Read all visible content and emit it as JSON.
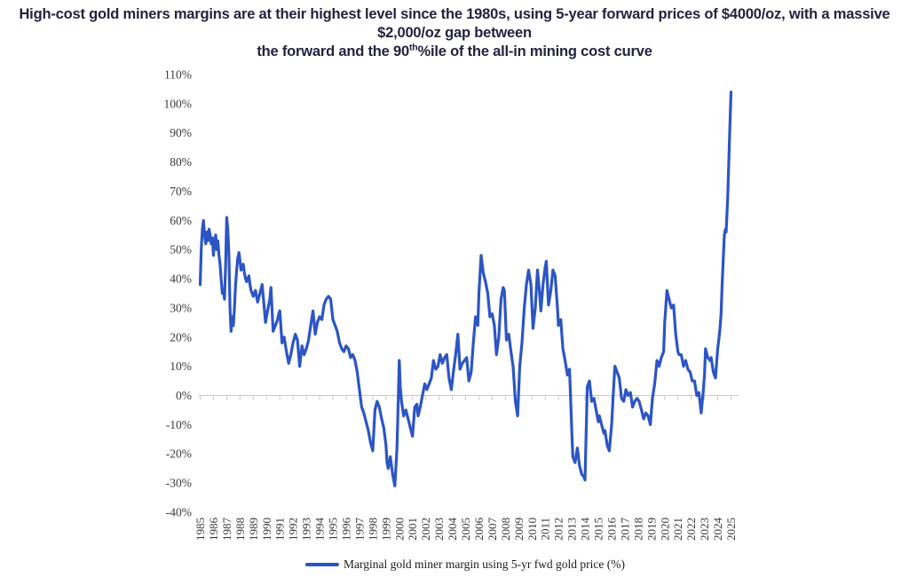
{
  "title": {
    "line1": "High-cost gold miners margins are at their highest level since the 1980s, using 5-year forward prices of $4000/oz, with a massive $2,000/oz gap between",
    "line2_pre": "the forward and the 90",
    "line2_sup": "th",
    "line2_post": "%ile of the all-in mining cost curve"
  },
  "legend": {
    "label": "Marginal gold miner margin using 5-yr fwd gold price (%)"
  },
  "colors": {
    "line": "#2C55C5",
    "axis": "#c9c9c9",
    "tick_text": "#3a3a3a",
    "title_text": "#23233F",
    "background": "#ffffff"
  },
  "chart_data": {
    "type": "line",
    "title": "High-cost gold miners margins are at their highest level since the 1980s, using 5-year forward prices of $4000/oz, with a massive $2,000/oz gap between the forward and the 90th%ile of the all-in mining cost curve",
    "xlabel": "",
    "ylabel": "",
    "grid": false,
    "legend_position": "bottom",
    "xlim": [
      1985,
      2025.5
    ],
    "ylim": [
      -40,
      110
    ],
    "y_ticks": [
      "110%",
      "100%",
      "90%",
      "80%",
      "70%",
      "60%",
      "50%",
      "40%",
      "30%",
      "20%",
      "10%",
      "0%",
      "-10%",
      "-20%",
      "-30%",
      "-40%"
    ],
    "x_ticks": [
      "1985",
      "1986",
      "1987",
      "1988",
      "1989",
      "1990",
      "1991",
      "1992",
      "1993",
      "1994",
      "1995",
      "1996",
      "1997",
      "1998",
      "1999",
      "2000",
      "2001",
      "2002",
      "2003",
      "2004",
      "2005",
      "2006",
      "2007",
      "2008",
      "2009",
      "2010",
      "2011",
      "2012",
      "2013",
      "2014",
      "2015",
      "2016",
      "2017",
      "2018",
      "2019",
      "2020",
      "2021",
      "2022",
      "2023",
      "2024",
      "2025"
    ],
    "series": [
      {
        "name": "Marginal gold miner margin using 5-yr fwd gold price (%)",
        "color": "#2C55C5",
        "points": [
          [
            1985.0,
            38
          ],
          [
            1985.08,
            50
          ],
          [
            1985.17,
            57
          ],
          [
            1985.25,
            60
          ],
          [
            1985.33,
            55
          ],
          [
            1985.42,
            52
          ],
          [
            1985.5,
            56
          ],
          [
            1985.58,
            53
          ],
          [
            1985.67,
            57
          ],
          [
            1985.75,
            55
          ],
          [
            1985.83,
            52
          ],
          [
            1985.92,
            54
          ],
          [
            1986.0,
            48
          ],
          [
            1986.08,
            52
          ],
          [
            1986.17,
            55
          ],
          [
            1986.25,
            50
          ],
          [
            1986.33,
            53
          ],
          [
            1986.42,
            48
          ],
          [
            1986.5,
            45
          ],
          [
            1986.58,
            40
          ],
          [
            1986.67,
            35
          ],
          [
            1986.75,
            36
          ],
          [
            1986.83,
            33
          ],
          [
            1986.92,
            45
          ],
          [
            1987.0,
            61
          ],
          [
            1987.08,
            57
          ],
          [
            1987.17,
            48
          ],
          [
            1987.25,
            30
          ],
          [
            1987.33,
            22
          ],
          [
            1987.42,
            27
          ],
          [
            1987.5,
            24
          ],
          [
            1987.58,
            30
          ],
          [
            1987.67,
            38
          ],
          [
            1987.75,
            43
          ],
          [
            1987.83,
            47
          ],
          [
            1987.92,
            49
          ],
          [
            1988.0,
            46
          ],
          [
            1988.08,
            43
          ],
          [
            1988.17,
            44
          ],
          [
            1988.25,
            45
          ],
          [
            1988.33,
            42
          ],
          [
            1988.42,
            40
          ],
          [
            1988.5,
            39
          ],
          [
            1988.58,
            40
          ],
          [
            1988.67,
            41
          ],
          [
            1988.75,
            38
          ],
          [
            1988.83,
            36
          ],
          [
            1988.92,
            35
          ],
          [
            1989.0,
            34
          ],
          [
            1989.17,
            36
          ],
          [
            1989.33,
            32
          ],
          [
            1989.5,
            35
          ],
          [
            1989.67,
            38
          ],
          [
            1989.83,
            30
          ],
          [
            1989.92,
            25
          ],
          [
            1990.08,
            29
          ],
          [
            1990.25,
            33
          ],
          [
            1990.33,
            37
          ],
          [
            1990.5,
            22
          ],
          [
            1990.67,
            24
          ],
          [
            1990.83,
            26
          ],
          [
            1990.92,
            28
          ],
          [
            1991.0,
            29
          ],
          [
            1991.17,
            18
          ],
          [
            1991.33,
            20
          ],
          [
            1991.5,
            15
          ],
          [
            1991.67,
            11
          ],
          [
            1991.83,
            14
          ],
          [
            1992.0,
            18
          ],
          [
            1992.17,
            21
          ],
          [
            1992.33,
            19
          ],
          [
            1992.5,
            10
          ],
          [
            1992.67,
            17
          ],
          [
            1992.83,
            14
          ],
          [
            1993.0,
            16
          ],
          [
            1993.17,
            19
          ],
          [
            1993.33,
            24
          ],
          [
            1993.5,
            29
          ],
          [
            1993.67,
            21
          ],
          [
            1993.83,
            25
          ],
          [
            1994.0,
            27
          ],
          [
            1994.17,
            26
          ],
          [
            1994.33,
            31
          ],
          [
            1994.5,
            33
          ],
          [
            1994.67,
            34
          ],
          [
            1994.83,
            33
          ],
          [
            1995.0,
            26
          ],
          [
            1995.17,
            24
          ],
          [
            1995.33,
            22
          ],
          [
            1995.5,
            18
          ],
          [
            1995.67,
            16
          ],
          [
            1995.83,
            15
          ],
          [
            1996.0,
            17
          ],
          [
            1996.17,
            16
          ],
          [
            1996.33,
            13
          ],
          [
            1996.5,
            14
          ],
          [
            1996.67,
            12
          ],
          [
            1996.83,
            8
          ],
          [
            1997.0,
            2
          ],
          [
            1997.17,
            -4
          ],
          [
            1997.33,
            -6
          ],
          [
            1997.5,
            -9
          ],
          [
            1997.67,
            -12
          ],
          [
            1997.83,
            -16
          ],
          [
            1998.0,
            -19
          ],
          [
            1998.17,
            -5
          ],
          [
            1998.33,
            -2
          ],
          [
            1998.5,
            -4
          ],
          [
            1998.67,
            -8
          ],
          [
            1998.83,
            -11
          ],
          [
            1999.0,
            -17
          ],
          [
            1999.08,
            -23
          ],
          [
            1999.17,
            -25
          ],
          [
            1999.33,
            -21
          ],
          [
            1999.5,
            -27
          ],
          [
            1999.67,
            -31
          ],
          [
            1999.83,
            -18
          ],
          [
            1999.92,
            -2
          ],
          [
            2000.0,
            12
          ],
          [
            2000.08,
            3
          ],
          [
            2000.17,
            -2
          ],
          [
            2000.33,
            -7
          ],
          [
            2000.5,
            -5
          ],
          [
            2000.67,
            -8
          ],
          [
            2000.83,
            -11
          ],
          [
            2001.0,
            -14
          ],
          [
            2001.17,
            -4
          ],
          [
            2001.33,
            -3
          ],
          [
            2001.42,
            -7
          ],
          [
            2001.58,
            -4
          ],
          [
            2001.75,
            0
          ],
          [
            2001.92,
            4
          ],
          [
            2002.08,
            2
          ],
          [
            2002.25,
            4
          ],
          [
            2002.42,
            6
          ],
          [
            2002.58,
            12
          ],
          [
            2002.75,
            9
          ],
          [
            2002.92,
            10
          ],
          [
            2003.08,
            14
          ],
          [
            2003.25,
            11
          ],
          [
            2003.42,
            13
          ],
          [
            2003.58,
            14
          ],
          [
            2003.75,
            6
          ],
          [
            2003.92,
            2
          ],
          [
            2004.08,
            8
          ],
          [
            2004.25,
            14
          ],
          [
            2004.42,
            21
          ],
          [
            2004.58,
            9
          ],
          [
            2004.75,
            11
          ],
          [
            2004.92,
            12
          ],
          [
            2005.08,
            13
          ],
          [
            2005.25,
            5
          ],
          [
            2005.42,
            8
          ],
          [
            2005.58,
            18
          ],
          [
            2005.75,
            27
          ],
          [
            2005.92,
            24
          ],
          [
            2006.0,
            35
          ],
          [
            2006.17,
            48
          ],
          [
            2006.33,
            42
          ],
          [
            2006.5,
            39
          ],
          [
            2006.67,
            35
          ],
          [
            2006.83,
            27
          ],
          [
            2007.0,
            28
          ],
          [
            2007.17,
            24
          ],
          [
            2007.33,
            14
          ],
          [
            2007.5,
            20
          ],
          [
            2007.67,
            33
          ],
          [
            2007.83,
            37
          ],
          [
            2007.92,
            36
          ],
          [
            2008.08,
            19
          ],
          [
            2008.25,
            21
          ],
          [
            2008.42,
            15
          ],
          [
            2008.58,
            10
          ],
          [
            2008.75,
            -2
          ],
          [
            2008.92,
            -7
          ],
          [
            2009.08,
            10
          ],
          [
            2009.25,
            18
          ],
          [
            2009.42,
            30
          ],
          [
            2009.58,
            38
          ],
          [
            2009.75,
            43
          ],
          [
            2009.92,
            38
          ],
          [
            2010.08,
            23
          ],
          [
            2010.25,
            30
          ],
          [
            2010.42,
            43
          ],
          [
            2010.58,
            35
          ],
          [
            2010.67,
            29
          ],
          [
            2010.83,
            38
          ],
          [
            2011.0,
            44
          ],
          [
            2011.08,
            46
          ],
          [
            2011.25,
            31
          ],
          [
            2011.42,
            36
          ],
          [
            2011.58,
            43
          ],
          [
            2011.75,
            41
          ],
          [
            2011.92,
            30
          ],
          [
            2012.0,
            24
          ],
          [
            2012.17,
            26
          ],
          [
            2012.33,
            16
          ],
          [
            2012.5,
            12
          ],
          [
            2012.67,
            7
          ],
          [
            2012.83,
            9
          ],
          [
            2013.0,
            -12
          ],
          [
            2013.08,
            -21
          ],
          [
            2013.25,
            -23
          ],
          [
            2013.42,
            -18
          ],
          [
            2013.58,
            -24
          ],
          [
            2013.75,
            -27
          ],
          [
            2013.92,
            -28
          ],
          [
            2014.0,
            -29
          ],
          [
            2014.17,
            3
          ],
          [
            2014.33,
            5
          ],
          [
            2014.5,
            -2
          ],
          [
            2014.67,
            -1
          ],
          [
            2014.83,
            -5
          ],
          [
            2015.0,
            -9
          ],
          [
            2015.08,
            -7
          ],
          [
            2015.25,
            -10
          ],
          [
            2015.42,
            -13
          ],
          [
            2015.5,
            -12
          ],
          [
            2015.67,
            -17
          ],
          [
            2015.83,
            -19
          ],
          [
            2016.0,
            -10
          ],
          [
            2016.17,
            4
          ],
          [
            2016.25,
            10
          ],
          [
            2016.42,
            8
          ],
          [
            2016.58,
            6
          ],
          [
            2016.75,
            -1
          ],
          [
            2016.92,
            -2
          ],
          [
            2017.08,
            2
          ],
          [
            2017.25,
            0
          ],
          [
            2017.42,
            1
          ],
          [
            2017.58,
            -4
          ],
          [
            2017.75,
            -2
          ],
          [
            2017.92,
            -1
          ],
          [
            2018.08,
            -2
          ],
          [
            2018.25,
            -5
          ],
          [
            2018.42,
            -8
          ],
          [
            2018.58,
            -6
          ],
          [
            2018.75,
            -7
          ],
          [
            2018.92,
            -10
          ],
          [
            2019.08,
            -1
          ],
          [
            2019.25,
            4
          ],
          [
            2019.42,
            12
          ],
          [
            2019.58,
            10
          ],
          [
            2019.75,
            13
          ],
          [
            2019.92,
            15
          ],
          [
            2020.0,
            25
          ],
          [
            2020.17,
            36
          ],
          [
            2020.33,
            33
          ],
          [
            2020.5,
            30
          ],
          [
            2020.67,
            31
          ],
          [
            2020.83,
            21
          ],
          [
            2021.0,
            15
          ],
          [
            2021.08,
            14
          ],
          [
            2021.25,
            14
          ],
          [
            2021.42,
            10
          ],
          [
            2021.58,
            12
          ],
          [
            2021.75,
            9
          ],
          [
            2021.92,
            8
          ],
          [
            2022.08,
            5
          ],
          [
            2022.25,
            5
          ],
          [
            2022.42,
            0
          ],
          [
            2022.58,
            1
          ],
          [
            2022.75,
            -6
          ],
          [
            2022.92,
            2
          ],
          [
            2023.0,
            7
          ],
          [
            2023.08,
            16
          ],
          [
            2023.25,
            13
          ],
          [
            2023.42,
            12
          ],
          [
            2023.5,
            13
          ],
          [
            2023.67,
            8
          ],
          [
            2023.83,
            6
          ],
          [
            2024.0,
            16
          ],
          [
            2024.08,
            19
          ],
          [
            2024.17,
            23
          ],
          [
            2024.25,
            28
          ],
          [
            2024.33,
            38
          ],
          [
            2024.42,
            47
          ],
          [
            2024.5,
            55
          ],
          [
            2024.58,
            57
          ],
          [
            2024.63,
            56
          ],
          [
            2024.67,
            60
          ],
          [
            2024.75,
            68
          ],
          [
            2024.83,
            80
          ],
          [
            2024.92,
            93
          ],
          [
            2025.0,
            104
          ]
        ]
      }
    ]
  }
}
